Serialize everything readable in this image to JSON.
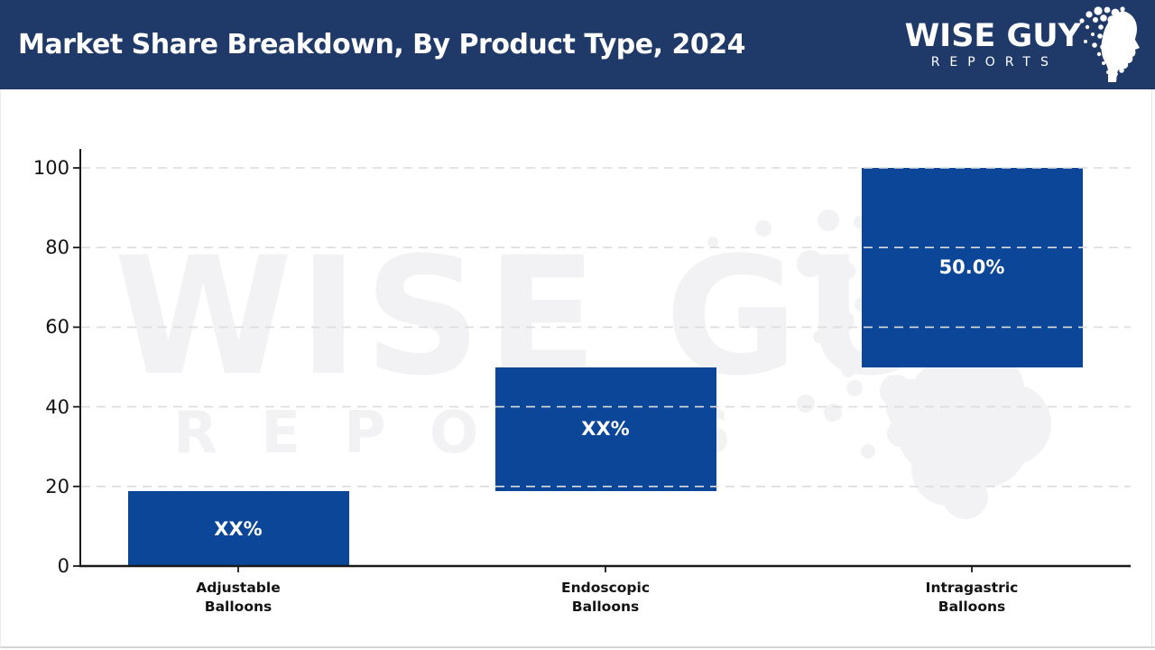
{
  "header": {
    "title": "Market Share Breakdown, By Product Type, 2024",
    "logo": {
      "wordmark": "WISE GUY",
      "subtitle": "REPORTS"
    }
  },
  "watermark": {
    "line1": "WISE GUY",
    "line2": "REPORTS"
  },
  "colors": {
    "header_bg": "#1F3A68",
    "bar": "#0B4699",
    "bar_label": "#FFFFFF",
    "grid": "#DCDCDC",
    "axis": "#1A1A1A",
    "tick_label": "#131313",
    "watermark": "#F2F2F5",
    "background": "#FFFFFF"
  },
  "chart_data": {
    "type": "bar",
    "subtype": "waterfall",
    "title": "Market Share Breakdown, By Product Type, 2024",
    "categories": [
      [
        "Adjustable",
        "Balloons"
      ],
      [
        "Endoscopic",
        "Balloons"
      ],
      [
        "Intragastric",
        "Balloons"
      ]
    ],
    "segments": [
      {
        "category": "Adjustable Balloons",
        "start": 0,
        "end": 18.8,
        "label": "XX%"
      },
      {
        "category": "Endoscopic Balloons",
        "start": 18.8,
        "end": 50.0,
        "label": "XX%"
      },
      {
        "category": "Intragastric Balloons",
        "start": 50.0,
        "end": 100.0,
        "label": "50.0%"
      }
    ],
    "ylim": [
      0,
      100
    ],
    "yticks": [
      0,
      20,
      40,
      60,
      80,
      100
    ],
    "xlabel": "",
    "ylabel": "",
    "grid": "horizontal-dashed",
    "legend": "none"
  }
}
